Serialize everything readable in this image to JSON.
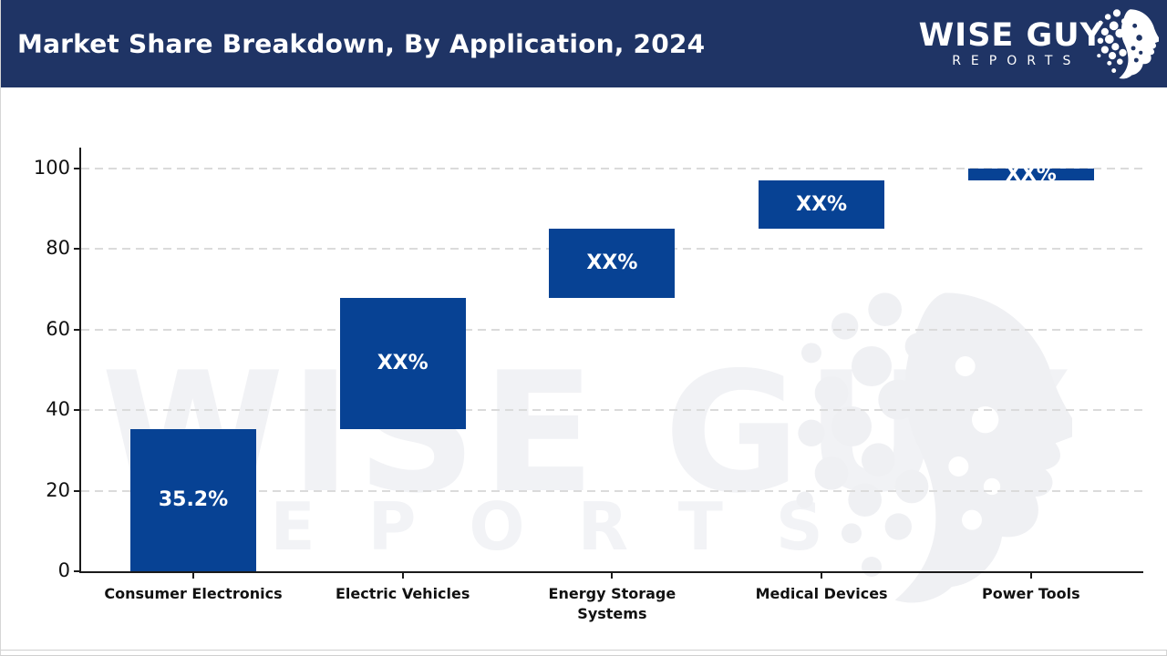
{
  "header": {
    "title": "Market Share Breakdown, By Application, 2024",
    "logo": {
      "line1": "WISE GUY",
      "line2": "REPORTS"
    }
  },
  "watermark": {
    "line1": "WISE GUY",
    "line2": "REPORTS"
  },
  "chart_data": {
    "type": "bar",
    "subtype": "waterfall-style cumulative market-share breakdown, floating segments",
    "title": "Market Share Breakdown, By Application, 2024",
    "categories": [
      "Consumer Electronics",
      "Electric Vehicles",
      "Energy Storage Systems",
      "Medical Devices",
      "Power Tools"
    ],
    "segments": [
      {
        "category": "Consumer Electronics",
        "start": 0,
        "end": 35.2,
        "label": "35.2%"
      },
      {
        "category": "Electric Vehicles",
        "start": 35.2,
        "end": 67.8,
        "label": "XX%"
      },
      {
        "category": "Energy Storage Systems",
        "start": 67.8,
        "end": 85.0,
        "label": "XX%"
      },
      {
        "category": "Medical Devices",
        "start": 85.0,
        "end": 97.0,
        "label": "XX%"
      },
      {
        "category": "Power Tools",
        "start": 97.0,
        "end": 100.0,
        "label": "XX%"
      }
    ],
    "yticks": [
      0,
      20,
      40,
      60,
      80,
      100
    ],
    "ylim": [
      0,
      105
    ],
    "xlabel": "",
    "ylabel": "",
    "grid": "horizontal dashed",
    "legend": "none",
    "bar_color": "#074294",
    "value_label_color": "#ffffff"
  },
  "colors": {
    "header_bg": "#1f3465",
    "bar": "#074294",
    "grid": "#dbdbdb",
    "axis": "#1a1a1a",
    "text": "#111111",
    "watermark": "#f1f2f5"
  }
}
